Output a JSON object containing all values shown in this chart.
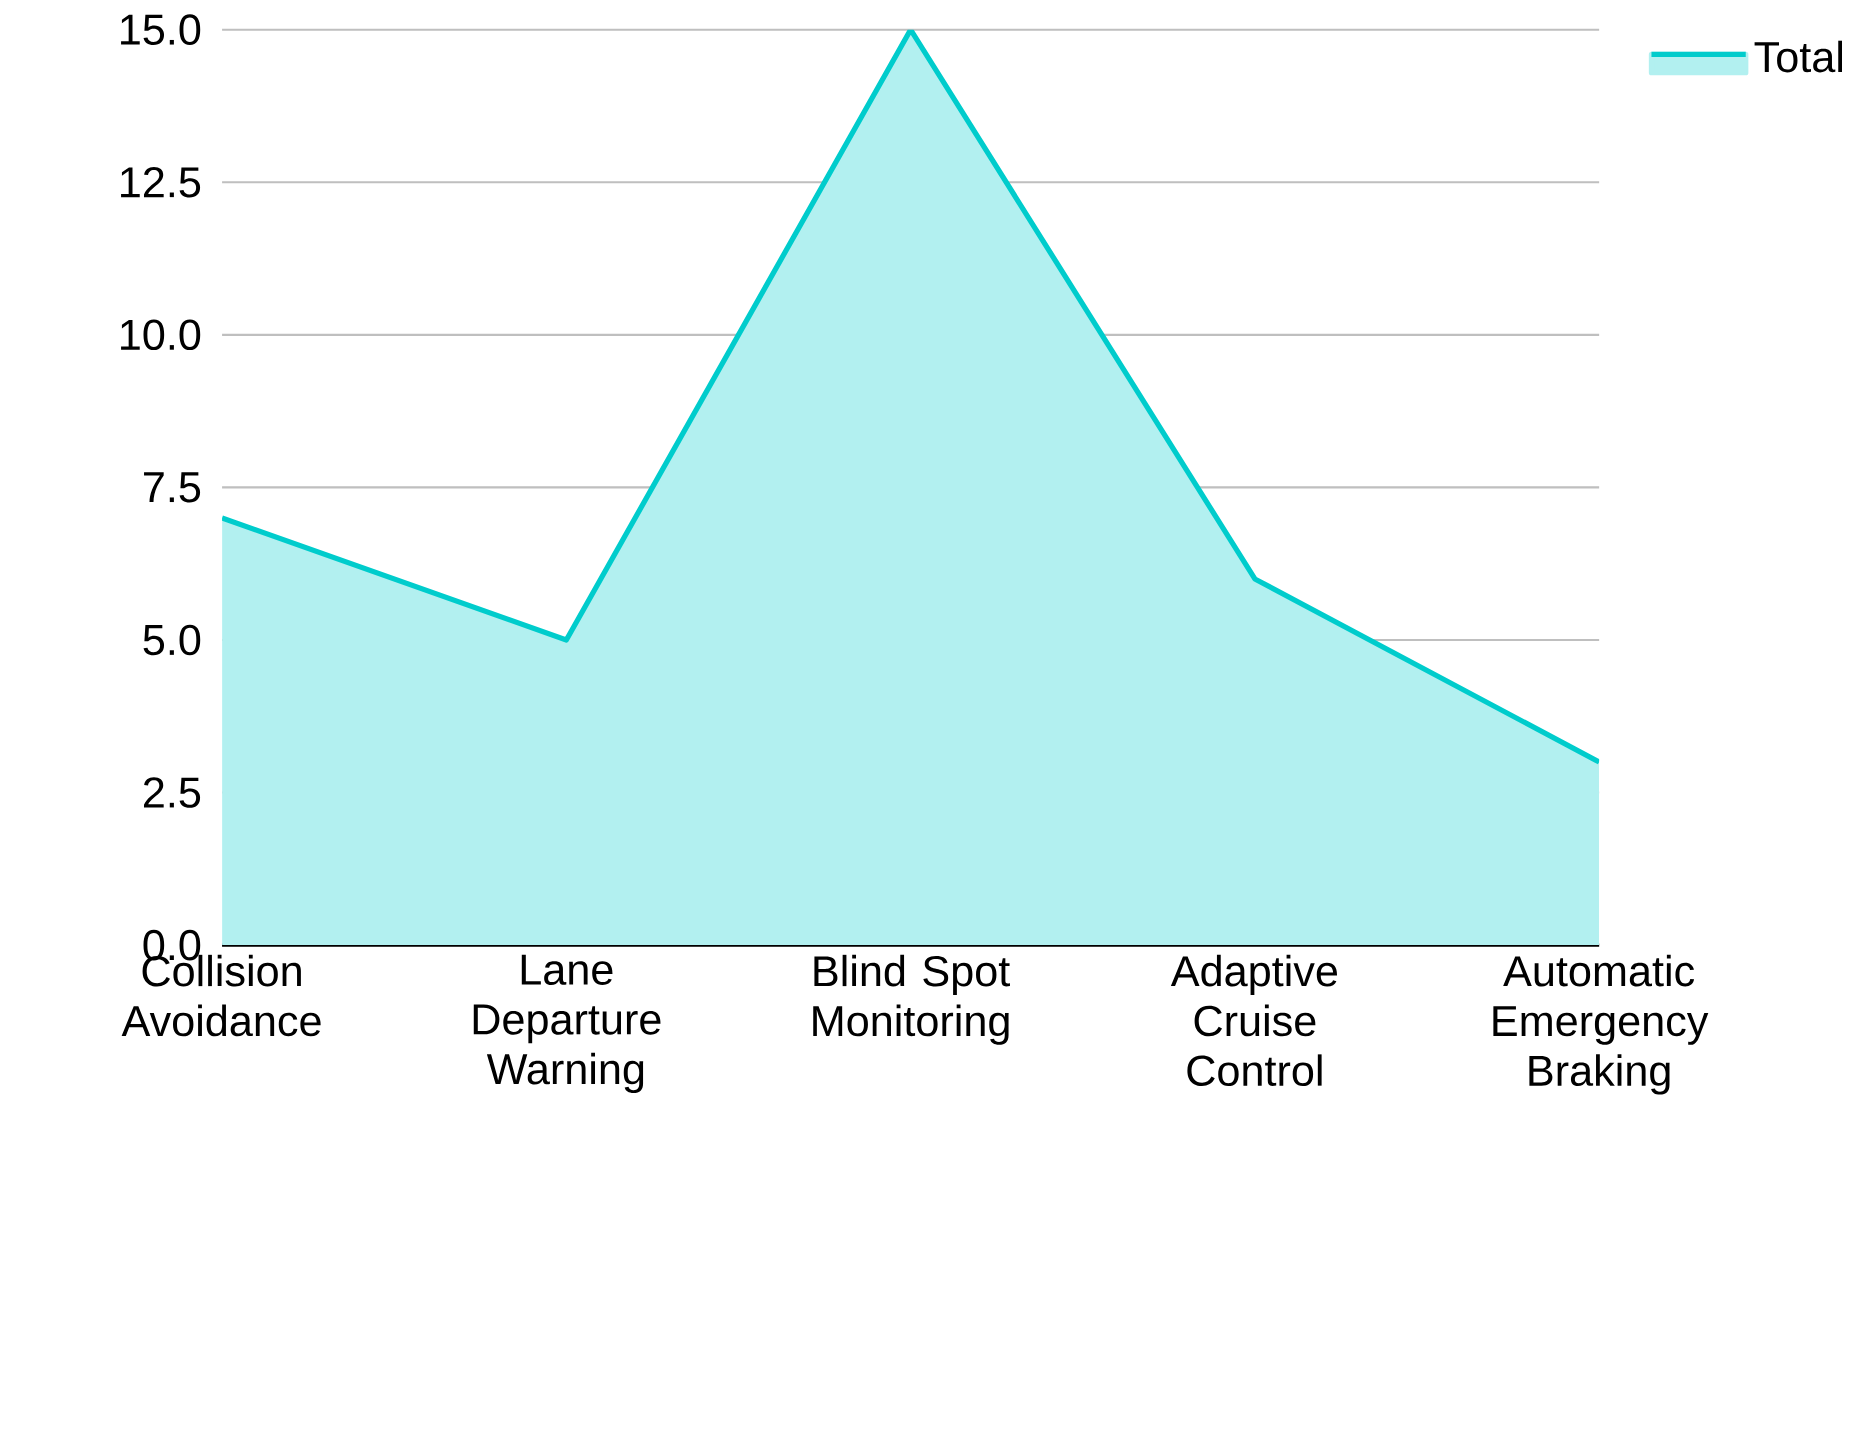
{
  "chart_data": {
    "type": "area",
    "categories": [
      "Collision Avoidance",
      "Lane Departure Warning",
      "Blind Spot Monitoring",
      "Adaptive Cruise Control",
      "Automatic Emergency Braking"
    ],
    "series": [
      {
        "name": "Total",
        "color": "#00cccc",
        "values": [
          7,
          5,
          15,
          6,
          3
        ]
      }
    ],
    "ylim": [
      0,
      15
    ],
    "yticks": [
      {
        "value": 0,
        "label": "0.0"
      },
      {
        "value": 2.5,
        "label": "2.5"
      },
      {
        "value": 5,
        "label": "5.0"
      },
      {
        "value": 7.5,
        "label": "7.5"
      },
      {
        "value": 10,
        "label": "10.0"
      },
      {
        "value": 12.5,
        "label": "12.5"
      },
      {
        "value": 15,
        "label": "15.0"
      }
    ],
    "grid": "y",
    "legend": "top right"
  }
}
